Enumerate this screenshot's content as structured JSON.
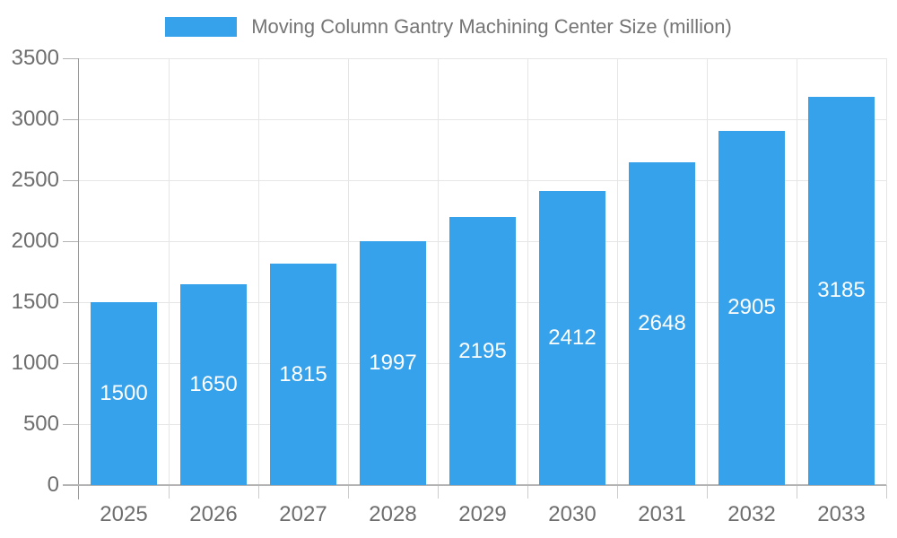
{
  "legend": {
    "label": "Moving Column Gantry Machining Center Size (million)"
  },
  "chart_data": {
    "type": "bar",
    "title": "",
    "categories": [
      "2025",
      "2026",
      "2027",
      "2028",
      "2029",
      "2030",
      "2031",
      "2032",
      "2033"
    ],
    "values": [
      1500,
      1650,
      1815,
      1997,
      2195,
      2412,
      2648,
      2905,
      3185
    ],
    "series": [
      {
        "name": "Moving Column Gantry Machining Center Size (million)",
        "values": [
          1500,
          1650,
          1815,
          1997,
          2195,
          2412,
          2648,
          2905,
          3185
        ]
      }
    ],
    "xlabel": "",
    "ylabel": "",
    "ylim": [
      0,
      3500
    ],
    "yticks": [
      0,
      500,
      1000,
      1500,
      2000,
      2500,
      3000,
      3500
    ],
    "grid": true,
    "value_labels": "inside-center",
    "legend_position": "top-center",
    "colors": {
      "bar": "#36A2EB",
      "value_label": "#FFFFFF",
      "axis_text": "#6E6E6E",
      "legend_text": "#757575",
      "grid_line": "#E6E6E6",
      "x_axis_line": "#B3B3B3",
      "y_axis_line": "#999999"
    }
  }
}
